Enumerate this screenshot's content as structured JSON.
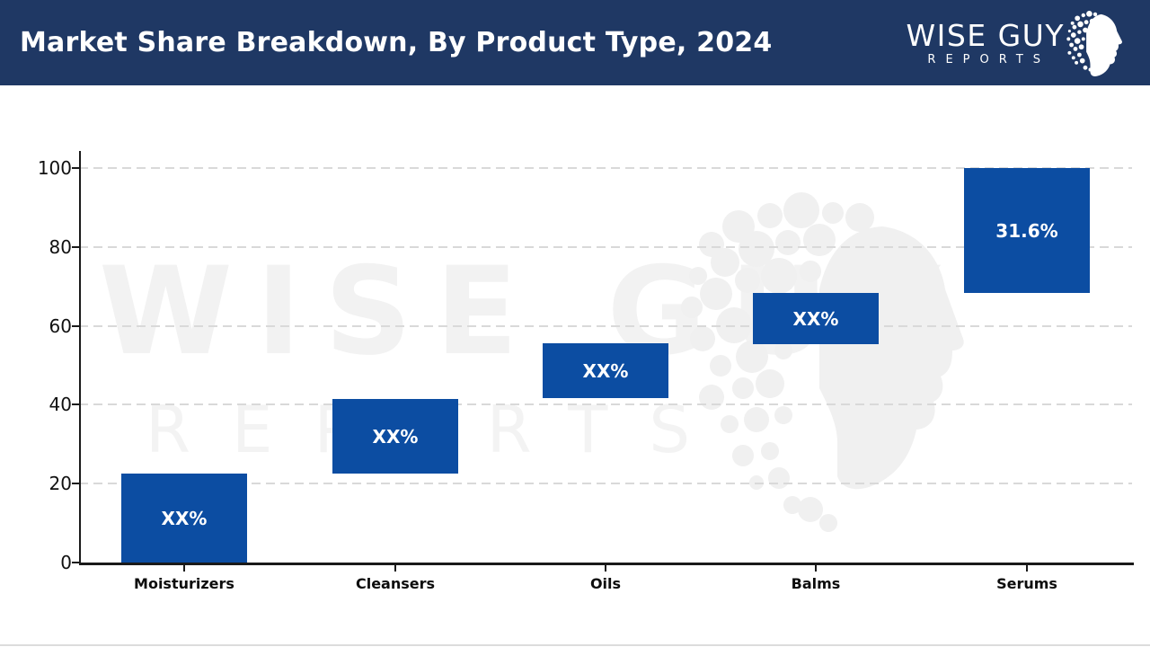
{
  "header": {
    "title": "Market Share Breakdown, By Product Type, 2024"
  },
  "brand": {
    "line1": "WISE GUY",
    "line2": "REPORTS"
  },
  "watermark": {
    "line1": "WISE GUY",
    "line2": "REPORTS"
  },
  "colors": {
    "header_bg": "#1f3864",
    "bar": "#0c4da2",
    "bar_label": "#ffffff",
    "axis": "#1a1a1a",
    "grid": "#d9d9d9",
    "watermark": "#f2f2f2"
  },
  "chart_data": {
    "type": "bar",
    "subtype": "floating-waterfall",
    "title": "Market Share Breakdown, By Product Type, 2024",
    "categories": [
      "Moisturizers",
      "Cleansers",
      "Oils",
      "Balms",
      "Serums"
    ],
    "segments": [
      {
        "category": "Moisturizers",
        "start": 0,
        "end": 22.5,
        "label": "XX%"
      },
      {
        "category": "Cleansers",
        "start": 22.5,
        "end": 41.5,
        "label": "XX%"
      },
      {
        "category": "Oils",
        "start": 41.5,
        "end": 55.5,
        "label": "XX%"
      },
      {
        "category": "Balms",
        "start": 55.5,
        "end": 68.4,
        "label": "XX%"
      },
      {
        "category": "Serums",
        "start": 68.4,
        "end": 100,
        "label": "31.6%"
      }
    ],
    "yticks": [
      0,
      20,
      40,
      60,
      80,
      100
    ],
    "ylim": [
      0,
      104
    ],
    "xlabel": "",
    "ylabel": "",
    "grid": "horizontal-dashed",
    "legend": "none",
    "bar_color": "#0c4da2",
    "bar_label_color": "#ffffff"
  }
}
